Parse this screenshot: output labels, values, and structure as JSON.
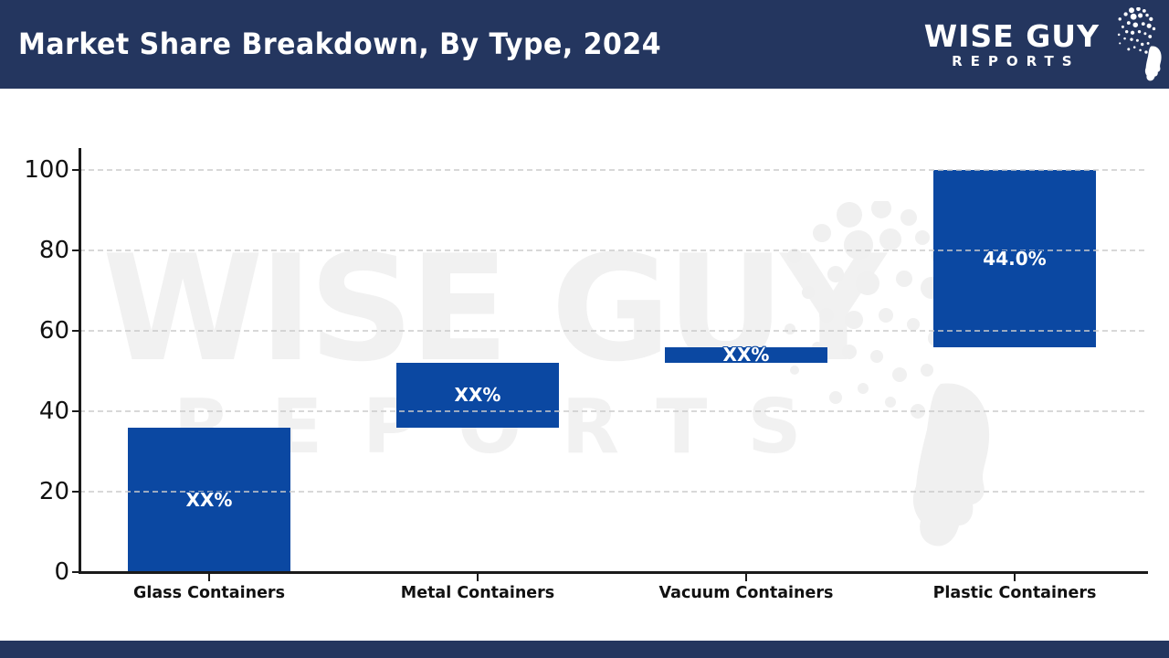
{
  "header": {
    "title": "Market Share Breakdown, By Type, 2024",
    "logo_line1": "WISE GUY",
    "logo_line2": "REPORTS"
  },
  "watermark": {
    "line1": "WISE GUY",
    "line2": "REPORTS"
  },
  "chart_data": {
    "type": "bar",
    "subtype": "waterfall",
    "title": "Market Share Breakdown, By Type, 2024",
    "categories": [
      "Glass Containers",
      "Metal Containers",
      "Vacuum Containers",
      "Plastic Containers"
    ],
    "series": [
      {
        "name": "Market Share (%)",
        "segments": [
          {
            "category": "Glass Containers",
            "start": 0,
            "end": 36,
            "value": 36,
            "label": "XX%"
          },
          {
            "category": "Metal Containers",
            "start": 36,
            "end": 52,
            "value": 16,
            "label": "XX%"
          },
          {
            "category": "Vacuum Containers",
            "start": 52,
            "end": 56,
            "value": 4,
            "label": "XX%"
          },
          {
            "category": "Plastic Containers",
            "start": 56,
            "end": 100,
            "value": 44,
            "label": "44.0%"
          }
        ]
      }
    ],
    "ylim": [
      0,
      100
    ],
    "yticks": [
      0,
      20,
      40,
      60,
      80,
      100
    ],
    "grid": "dashed-horizontal",
    "legend": "none",
    "colors": {
      "bar": "#0b48a2",
      "header_bg": "#24365f",
      "footer_bg": "#24365f",
      "axis": "#1a1a1a",
      "watermark": "#f1f1f1",
      "bar_label_text": "#ffffff"
    }
  }
}
